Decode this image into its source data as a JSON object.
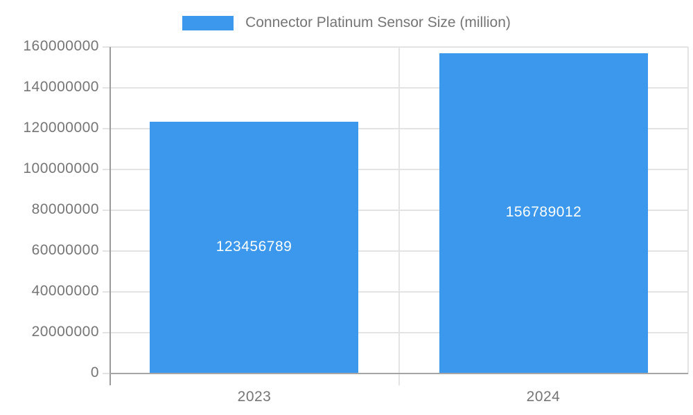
{
  "chart_data": {
    "type": "bar",
    "title": "Connector Platinum Sensor Size (million)",
    "categories": [
      "2023",
      "2024"
    ],
    "series": [
      {
        "name": "Connector Platinum Sensor Size (million)",
        "values": [
          123456789,
          156789012
        ]
      }
    ],
    "value_labels": [
      "123456789",
      "156789012"
    ],
    "xlabel": "",
    "ylabel": "",
    "ylim": [
      0,
      160000000
    ],
    "ytick_step": 20000000,
    "ytick_labels": [
      "0",
      "20000000",
      "40000000",
      "60000000",
      "80000000",
      "100000000",
      "120000000",
      "140000000",
      "160000000"
    ],
    "grid": true,
    "legend_position": "top"
  },
  "colors": {
    "bar": "#3b98ec",
    "grid": "#e3e3e3",
    "axis": "#9a9a9a",
    "baseline": "#a5a5a5",
    "tick_text": "#757575",
    "value_text": "#ffffff",
    "background": "#ffffff"
  }
}
